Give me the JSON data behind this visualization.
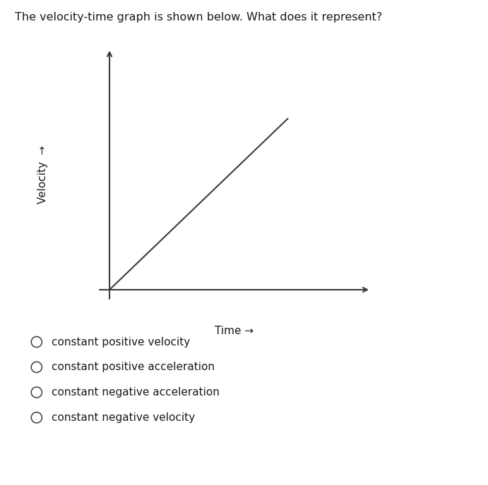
{
  "question_text": "The velocity-time graph is shown below. What does it represent?",
  "question_fontsize": 11.5,
  "background_color": "#ffffff",
  "line_color": "#3c3c3c",
  "line_width": 1.5,
  "axis_color": "#3c3c3c",
  "xlabel": "Time →",
  "xlabel_fontsize": 11,
  "ylabel_fontsize": 11,
  "options": [
    "constant positive velocity",
    "constant positive acceleration",
    "constant negative acceleration",
    "constant negative velocity"
  ],
  "option_fontsize": 11
}
